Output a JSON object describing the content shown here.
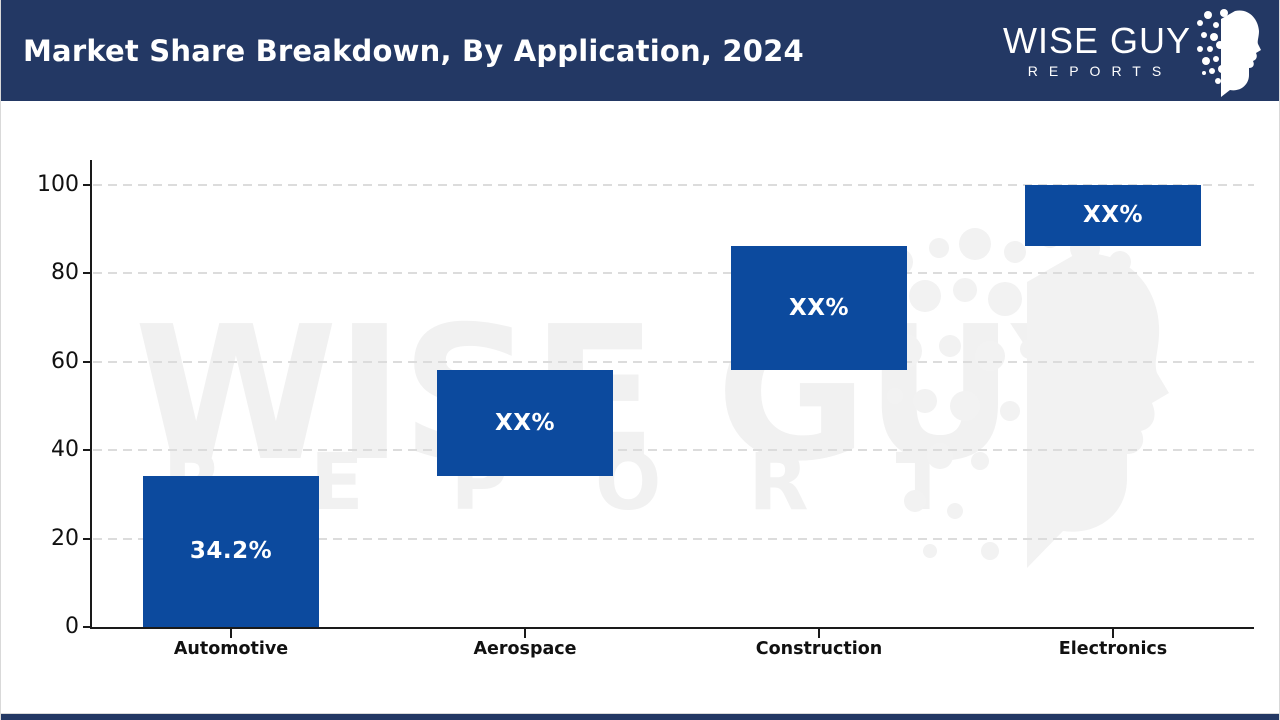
{
  "page": {
    "background": "#ffffff",
    "border_color": "#d9d9d9",
    "accent_navy": "#233864"
  },
  "header": {
    "title": "Market Share Breakdown, By Application, 2024",
    "bg_color": "#233864",
    "logo": {
      "line1": "WISE GUY",
      "line2": "REPORTS",
      "head_icon": "dotted-head-profile"
    }
  },
  "watermark": {
    "line1": "WISE GUY",
    "line2": "R E P O R T S",
    "head_icon": "dotted-head-profile"
  },
  "chart_data": {
    "type": "bar",
    "subtype": "waterfall",
    "title": "Market Share Breakdown, By Application, 2024",
    "categories": [
      "Automotive",
      "Aerospace",
      "Construction",
      "Electronics"
    ],
    "segments": [
      {
        "category": "Automotive",
        "start": 0,
        "end": 34.2,
        "label": "34.2%"
      },
      {
        "category": "Aerospace",
        "start": 34.2,
        "end": 58.2,
        "label": "XX%"
      },
      {
        "category": "Construction",
        "start": 58.2,
        "end": 86.2,
        "label": "XX%"
      },
      {
        "category": "Electronics",
        "start": 86.2,
        "end": 100,
        "label": "XX%"
      }
    ],
    "xlabel": "",
    "ylabel": "",
    "ylim": [
      0,
      100
    ],
    "yticks": [
      0,
      20,
      40,
      60,
      80,
      100
    ],
    "grid": "horizontal-dashed",
    "legend": "none",
    "bar_color": "#0c4a9e",
    "bar_label_color": "#ffffff",
    "axis_color": "#1a1a1a",
    "gridline_color": "#dcdcdc"
  }
}
